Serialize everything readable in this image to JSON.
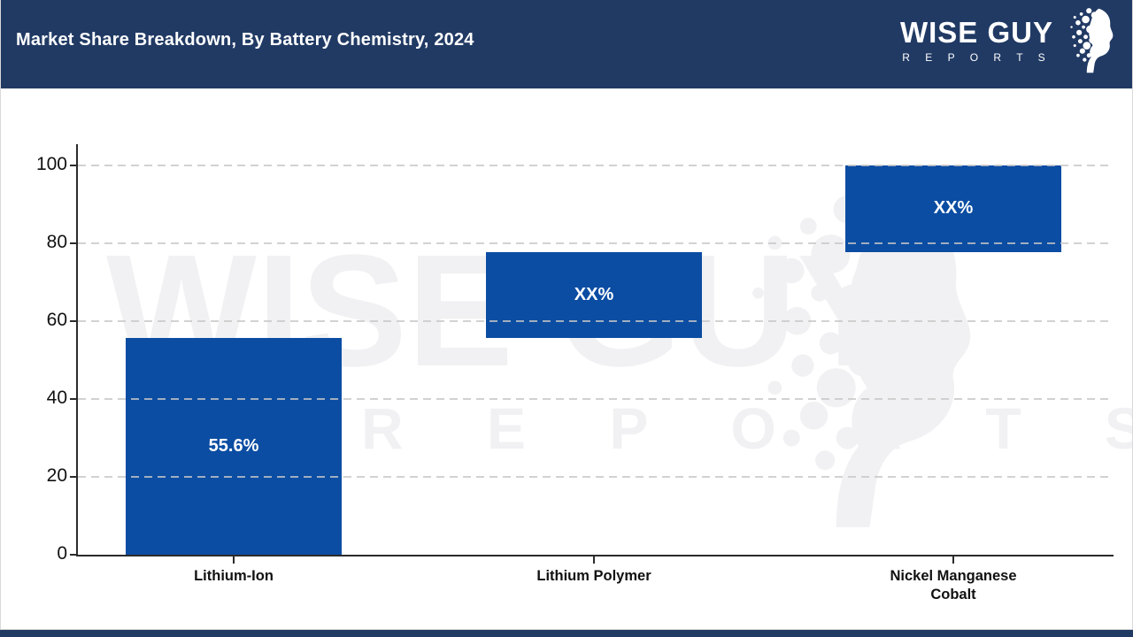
{
  "colors": {
    "navy": "#213a64",
    "bar": "#0b4da3",
    "watermark": "#f1f1f3",
    "grid": "#c7c7c7"
  },
  "header": {
    "title": "Market Share Breakdown, By Battery Chemistry, 2024"
  },
  "logo": {
    "name": "WISE GUY",
    "tagline": "R E P O R T S",
    "icon": "dotted-face-profile"
  },
  "watermark": {
    "name": "WISE GUY",
    "tagline": "R E P O R T S"
  },
  "chart_data": {
    "type": "bar",
    "subtype": "stacked-waterfall-percentage",
    "title": "Market Share Breakdown, By Battery Chemistry, 2024",
    "categories": [
      "Lithium-Ion",
      "Lithium Polymer",
      "Nickel Manganese Cobalt"
    ],
    "series": [
      {
        "name": "Market share (%)",
        "segments": [
          {
            "category": "Lithium-Ion",
            "from": 0,
            "to": 55.6,
            "label": "55.6%"
          },
          {
            "category": "Lithium Polymer",
            "from": 55.6,
            "to": 77.8,
            "label": "XX%"
          },
          {
            "category": "Nickel Manganese Cobalt",
            "from": 77.8,
            "to": 100,
            "label": "XX%"
          }
        ]
      }
    ],
    "xlabel": "",
    "ylabel": "",
    "yticks": [
      0,
      20,
      40,
      60,
      80,
      100
    ],
    "ylim": [
      0,
      105
    ],
    "grid": {
      "axis": "y",
      "style": "dashed",
      "on": true,
      "above_bars": true
    },
    "legend": false,
    "bar_color": "#0b4da3",
    "value_label_color": "#ffffff"
  }
}
